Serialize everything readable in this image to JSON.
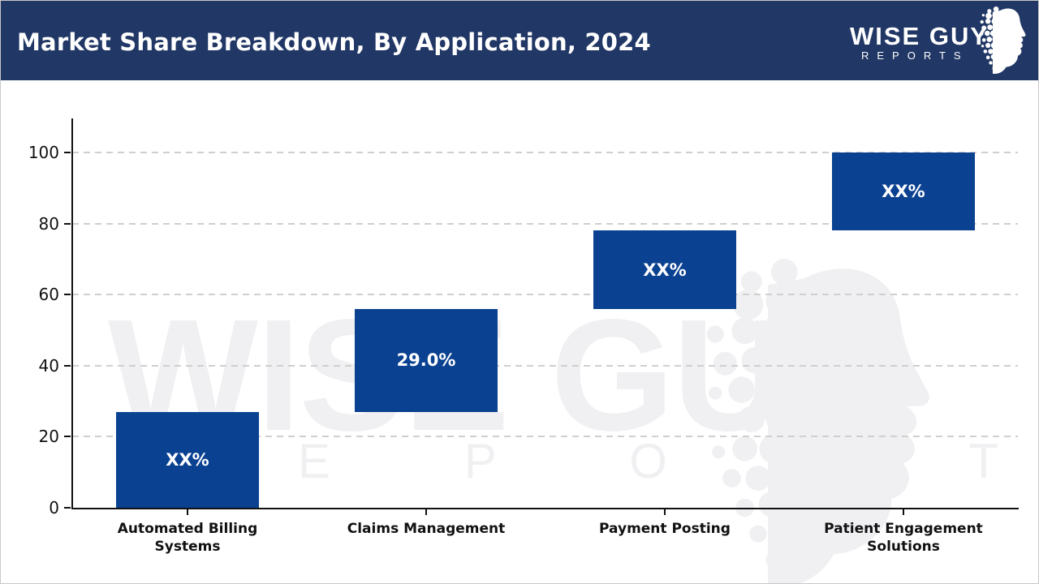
{
  "header": {
    "title": "Market Share Breakdown, By Application, 2024",
    "logo": {
      "wordmark": "WISE GUY",
      "subtext": "REPORTS"
    }
  },
  "watermark": {
    "wordmark": "WISE GUY",
    "subtext": "R E P O R T S"
  },
  "chart_data": {
    "type": "bar",
    "variant": "floating-waterfall",
    "title": "Market Share Breakdown, By Application, 2024",
    "categories": [
      "Automated Billing Systems",
      "Claims Management",
      "Payment Posting",
      "Patient Engagement Solutions"
    ],
    "segments": [
      {
        "category": "Automated Billing Systems",
        "category_lines": [
          "Automated Billing",
          "Systems"
        ],
        "start": 0,
        "end": 27,
        "label": "XX%"
      },
      {
        "category": "Claims Management",
        "category_lines": [
          "Claims Management"
        ],
        "start": 27,
        "end": 56,
        "label": "29.0%"
      },
      {
        "category": "Payment Posting",
        "category_lines": [
          "Payment Posting"
        ],
        "start": 56,
        "end": 78,
        "label": "XX%"
      },
      {
        "category": "Patient Engagement Solutions",
        "category_lines": [
          "Patient Engagement",
          "Solutions"
        ],
        "start": 78,
        "end": 100,
        "label": "XX%"
      }
    ],
    "xlabel": "",
    "ylabel": "",
    "ylim": [
      0,
      100
    ],
    "yticks": [
      0,
      20,
      40,
      60,
      80,
      100
    ],
    "grid": true,
    "grid_style": "dashed",
    "legend": false
  },
  "colors": {
    "header_bg": "#213765",
    "bar": "#0b4191",
    "grid": "#cfcfcf",
    "axis": "#111111",
    "label_text": "#111111",
    "title_text": "#ffffff",
    "watermark": "#f0f0f2",
    "page_border": "#c9c9c9"
  }
}
